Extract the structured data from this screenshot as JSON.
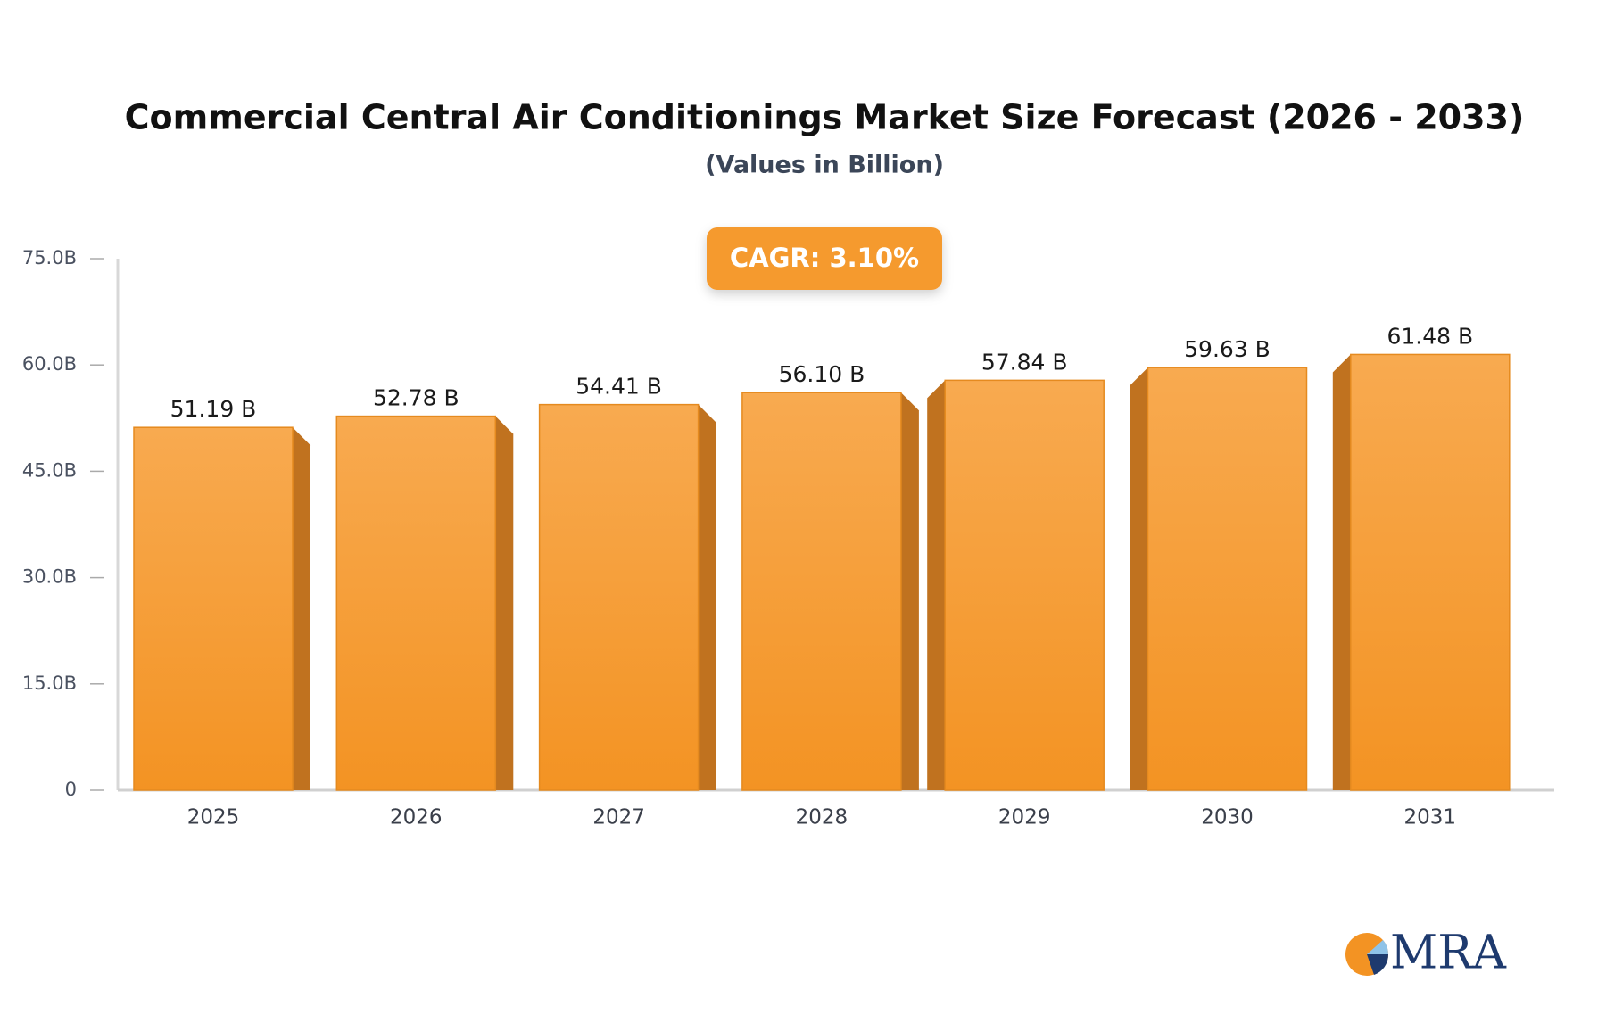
{
  "chart_data": {
    "type": "bar",
    "title": "Commercial Central Air Conditionings Market Size Forecast (2026 - 2033)",
    "subtitle": "(Values in Billion)",
    "annotation": "CAGR: 3.10%",
    "categories": [
      "2025",
      "2026",
      "2027",
      "2028",
      "2029",
      "2030",
      "2031"
    ],
    "values": [
      51.19,
      52.78,
      54.41,
      56.1,
      57.84,
      59.63,
      61.48
    ],
    "value_labels": [
      "51.19 B",
      "52.78 B",
      "54.41 B",
      "56.10 B",
      "57.84 B",
      "59.63 B",
      "61.48 B"
    ],
    "color": "#f59a2e",
    "ylim": [
      0,
      75
    ],
    "yticks": [
      0,
      {
        "value": 15,
        "label": "15.0B"
      },
      {
        "value": 30,
        "label": "30.0B"
      },
      {
        "value": 45,
        "label": "45.0B"
      },
      {
        "value": 60,
        "label": "60.0B"
      },
      {
        "value": 75,
        "label": "75.0B"
      }
    ],
    "grid": false
  },
  "logo": "MRA"
}
